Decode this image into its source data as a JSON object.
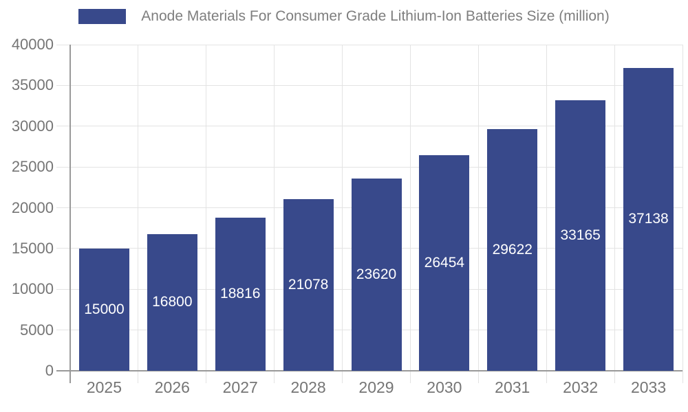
{
  "chart_data": {
    "type": "bar",
    "title": "Anode Materials For Consumer Grade Lithium-Ion Batteries Size (million)",
    "categories": [
      "2025",
      "2026",
      "2027",
      "2028",
      "2029",
      "2030",
      "2031",
      "2032",
      "2033"
    ],
    "values": [
      15000,
      16800,
      18816,
      21078,
      23620,
      26454,
      29622,
      33165,
      37138
    ],
    "xlabel": "",
    "ylabel": "",
    "ylim": [
      0,
      40000
    ],
    "y_ticks": [
      0,
      5000,
      10000,
      15000,
      20000,
      25000,
      30000,
      35000,
      40000
    ],
    "grid": true,
    "legend_position": "top-center",
    "value_labels": "inside-center",
    "style": {
      "bar_color": "#38498B",
      "axis_color": "#999999",
      "grid_color": "#E3E3E3",
      "tick_label_color": "#757575",
      "title_color": "#7E7E7E",
      "value_label_color": "#FFFFFF",
      "background": "#FFFFFF"
    }
  }
}
